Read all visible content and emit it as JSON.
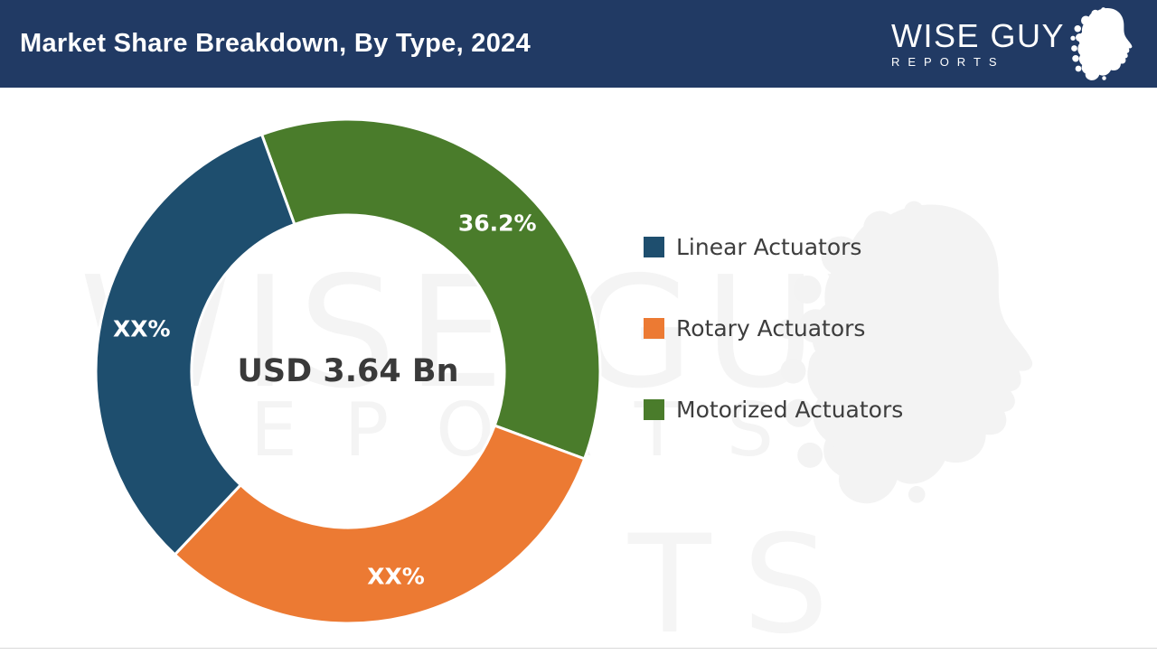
{
  "header": {
    "title": "Market Share Breakdown, By Type, 2024",
    "logo": {
      "name": "Wise Guy Reports",
      "line1": "WISE GUY",
      "line2": "REPORTS"
    }
  },
  "watermark": {
    "line1": "WISE GUY",
    "line2": "REPORTS",
    "fragment": "TS"
  },
  "donut": {
    "center_label": "USD 3.64 Bn"
  },
  "legend": {
    "items": [
      {
        "label": "Linear Actuators",
        "color": "#1e4e6e"
      },
      {
        "label": "Rotary Actuators",
        "color": "#ec7a33"
      },
      {
        "label": "Motorized Actuators",
        "color": "#4a7c2b"
      }
    ]
  },
  "colors": {
    "header_bar": "#213a64",
    "background": "#ffffff",
    "center_text": "#3a3a3a",
    "segment_label_text": "#ffffff"
  },
  "chart_data": {
    "type": "donut",
    "title": "Market Share Breakdown, By Type, 2024",
    "center_label": "USD 3.64 Bn",
    "start_angle_deg": -20,
    "clockwise": true,
    "legend_position": "right",
    "segments": [
      {
        "name": "Motorized Actuators",
        "color": "#4a7c2b",
        "display_label": "36.2%",
        "value_pct": 36.2
      },
      {
        "name": "Rotary Actuators",
        "color": "#ec7a33",
        "display_label": "XX%",
        "value_pct": 31.4
      },
      {
        "name": "Linear Actuators",
        "color": "#1e4e6e",
        "display_label": "XX%",
        "value_pct": 32.4
      }
    ]
  }
}
